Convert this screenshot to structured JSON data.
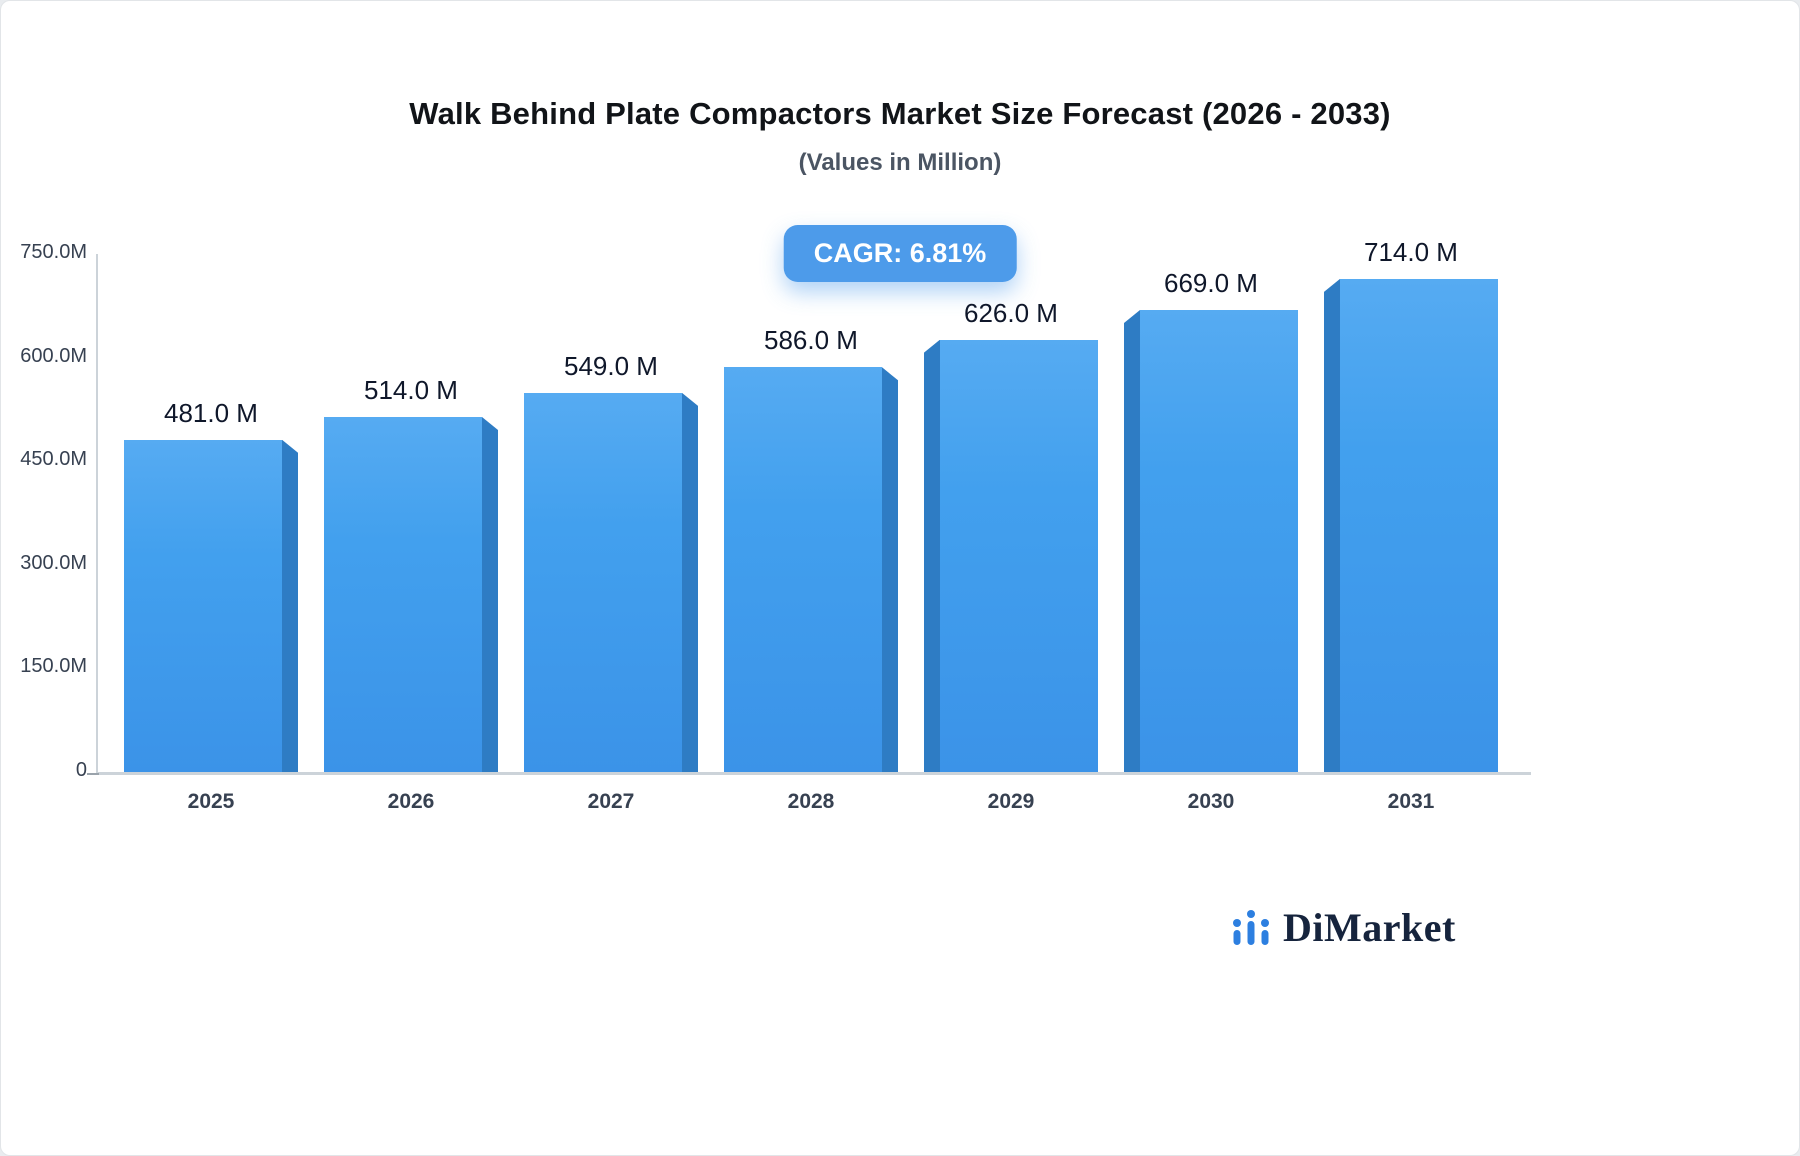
{
  "header": {
    "title": "Walk Behind Plate Compactors Market Size Forecast (2026 - 2033)",
    "subtitle": "(Values in Million)"
  },
  "cagr_badge": {
    "label": "CAGR: 6.81%",
    "color": "#4D9BEA"
  },
  "chart_data": {
    "type": "bar",
    "title": "Walk Behind Plate Compactors Market Size Forecast (2026 - 2033)",
    "subtitle": "(Values in Million)",
    "categories": [
      "2025",
      "2026",
      "2027",
      "2028",
      "2029",
      "2030",
      "2031"
    ],
    "values": [
      481,
      514,
      549,
      586,
      626,
      669,
      714
    ],
    "value_labels": [
      "481.0 M",
      "514.0 M",
      "549.0 M",
      "586.0 M",
      "626.0 M",
      "669.0 M",
      "714.0 M"
    ],
    "cagr": "6.81%",
    "xlabel": "",
    "ylabel": "",
    "ylim": [
      0,
      750
    ],
    "yticks": [
      {
        "value": 750,
        "label": "750.0M"
      },
      {
        "value": 600,
        "label": "600.0M"
      },
      {
        "value": 450,
        "label": "450.0M"
      },
      {
        "value": 300,
        "label": "300.0M"
      },
      {
        "value": 150,
        "label": "150.0M"
      },
      {
        "value": 0,
        "label": "0"
      }
    ],
    "grid": false,
    "legend": false,
    "bar_color_top": "#56ABF2",
    "bar_color_bottom": "#3B93E8",
    "bar_side_color": "#2E7CC4"
  },
  "logo": {
    "icon": "mini-bar-chart-icon",
    "icon_color": "#2D7FE0",
    "text": "DiMarket"
  }
}
